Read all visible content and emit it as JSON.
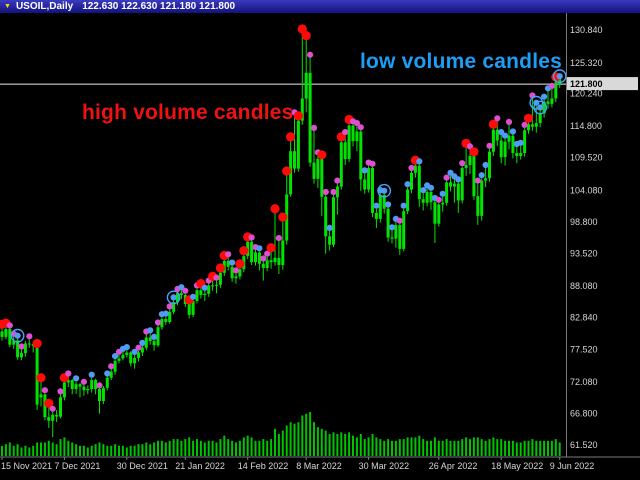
{
  "window": {
    "collapse_icon": "▼",
    "symbol": "USOIL,Daily",
    "ohlc_text": "122.630 122.630 121.180 121.800"
  },
  "annotations": {
    "high_volume": {
      "text": "high volume candles",
      "color": "#ee1212"
    },
    "low_volume": {
      "text": "low volume candles",
      "color": "#1e9df5"
    }
  },
  "colors": {
    "background": "#000000",
    "candle": "#00e400",
    "volume": "#00c400",
    "axis_text": "#d6d6d6",
    "axis_line": "#7a7a7a",
    "price_line": "#ececec",
    "price_tag_bg": "#d9d9d9",
    "price_tag_text": "#000000"
  },
  "chart_data": {
    "type": "candlestick",
    "symbol": "USOIL",
    "timeframe": "Daily",
    "legend": "red dot = high volume candle, magenta dot = medium volume, blue dot = low volume, ring = circled highlight",
    "current_price": "121.800",
    "price_axis_labels": [
      "130.840",
      "125.320",
      "120.240",
      "114.800",
      "109.520",
      "104.080",
      "98.800",
      "93.520",
      "88.080",
      "82.840",
      "77.520",
      "72.080",
      "66.800",
      "61.520"
    ],
    "date_axis_labels": [
      {
        "text": "15 Nov 2021",
        "index": 0
      },
      {
        "text": "7 Dec 2021",
        "index": 16
      },
      {
        "text": "30 Dec 2021",
        "index": 32
      },
      {
        "text": "21 Jan 2022",
        "index": 47
      },
      {
        "text": "14 Feb 2022",
        "index": 63
      },
      {
        "text": "8 Mar 2022",
        "index": 78
      },
      {
        "text": "30 Mar 2022",
        "index": 94
      },
      {
        "text": "26 Apr 2022",
        "index": 112
      },
      {
        "text": "18 May 2022",
        "index": 128
      },
      {
        "text": "9 Jun 2022",
        "index": 143
      }
    ],
    "marker_colors": {
      "r": "#ff0a0a",
      "m": "#de4fd0",
      "b": "#4f9bf5",
      "ring": "#45a6ff"
    },
    "candles_format": [
      "open",
      "high",
      "low",
      "close",
      "volume",
      "marker"
    ],
    "candles": [
      [
        80.5,
        81.2,
        79.0,
        79.6,
        6,
        "r"
      ],
      [
        79.6,
        81.4,
        79.2,
        80.9,
        7,
        "r"
      ],
      [
        80.9,
        81.0,
        77.9,
        78.3,
        8,
        "m"
      ],
      [
        78.3,
        79.6,
        77.6,
        79.0,
        6,
        "m"
      ],
      [
        79.0,
        79.3,
        75.8,
        76.2,
        7,
        "bc"
      ],
      [
        76.2,
        77.5,
        75.7,
        76.9,
        5,
        "m"
      ],
      [
        76.9,
        78.9,
        76.3,
        78.5,
        6,
        ""
      ],
      [
        78.5,
        79.2,
        77.8,
        78.4,
        5,
        "m"
      ],
      [
        78.4,
        78.7,
        77.0,
        78.1,
        6,
        ""
      ],
      [
        77.8,
        78.0,
        67.4,
        68.3,
        8,
        "r"
      ],
      [
        69.5,
        72.3,
        68.0,
        70.0,
        8,
        "r"
      ],
      [
        70.0,
        70.2,
        65.7,
        66.2,
        8,
        "m"
      ],
      [
        66.2,
        68.0,
        64.4,
        65.6,
        9,
        "r"
      ],
      [
        65.6,
        67.1,
        62.9,
        66.6,
        8,
        "m"
      ],
      [
        66.6,
        67.4,
        65.4,
        66.3,
        7,
        ""
      ],
      [
        66.3,
        70.0,
        66.0,
        69.5,
        10,
        "m"
      ],
      [
        69.5,
        72.3,
        69.0,
        72.0,
        11,
        "r"
      ],
      [
        72.0,
        73.0,
        71.2,
        72.4,
        9,
        "m"
      ],
      [
        72.4,
        72.6,
        70.0,
        70.9,
        8,
        ""
      ],
      [
        70.9,
        72.2,
        70.1,
        71.7,
        7,
        "b"
      ],
      [
        71.7,
        71.9,
        69.5,
        71.3,
        6,
        ""
      ],
      [
        71.3,
        71.6,
        69.8,
        70.7,
        6,
        "m"
      ],
      [
        70.7,
        71.5,
        70.0,
        70.9,
        5,
        ""
      ],
      [
        70.9,
        72.8,
        70.3,
        72.4,
        6,
        "b"
      ],
      [
        72.4,
        72.6,
        70.0,
        70.9,
        7,
        ""
      ],
      [
        70.9,
        71.0,
        66.8,
        68.9,
        8,
        "m"
      ],
      [
        68.9,
        71.4,
        68.4,
        71.1,
        7,
        ""
      ],
      [
        71.1,
        73.0,
        70.7,
        72.8,
        6,
        "b"
      ],
      [
        72.8,
        74.2,
        72.4,
        73.8,
        6,
        "m"
      ],
      [
        73.8,
        75.9,
        73.3,
        75.6,
        7,
        "b"
      ],
      [
        75.6,
        76.6,
        75.2,
        76.0,
        6,
        "m"
      ],
      [
        76.0,
        77.1,
        75.7,
        76.6,
        6,
        "b"
      ],
      [
        76.6,
        77.4,
        76.2,
        77.0,
        5,
        "b"
      ],
      [
        77.0,
        77.2,
        74.7,
        75.2,
        6,
        ""
      ],
      [
        75.2,
        76.6,
        74.3,
        76.1,
        6,
        "b"
      ],
      [
        76.1,
        77.3,
        75.5,
        77.0,
        7,
        "m"
      ],
      [
        77.0,
        78.1,
        76.4,
        77.8,
        7,
        "b"
      ],
      [
        77.8,
        80.0,
        77.4,
        79.5,
        8,
        "m"
      ],
      [
        79.5,
        80.2,
        78.3,
        78.9,
        7,
        "b"
      ],
      [
        78.9,
        79.1,
        77.3,
        78.2,
        8,
        "b"
      ],
      [
        78.2,
        81.5,
        77.9,
        81.2,
        9,
        "m"
      ],
      [
        81.2,
        82.9,
        80.8,
        82.6,
        9,
        "b"
      ],
      [
        82.6,
        83.0,
        81.6,
        82.1,
        8,
        "b"
      ],
      [
        82.1,
        84.2,
        81.8,
        83.8,
        9,
        "m"
      ],
      [
        83.8,
        85.7,
        83.4,
        85.4,
        10,
        "bc"
      ],
      [
        85.4,
        87.1,
        84.9,
        86.9,
        10,
        "m"
      ],
      [
        86.9,
        87.4,
        85.9,
        86.6,
        9,
        "b"
      ],
      [
        86.6,
        86.8,
        84.6,
        85.1,
        10,
        "m"
      ],
      [
        85.1,
        85.3,
        82.7,
        83.3,
        11,
        "r"
      ],
      [
        83.3,
        85.8,
        82.9,
        85.6,
        9,
        "b"
      ],
      [
        85.6,
        87.7,
        85.2,
        87.4,
        10,
        "m"
      ],
      [
        87.4,
        88.0,
        86.0,
        86.6,
        9,
        "r"
      ],
      [
        86.6,
        87.3,
        85.6,
        86.8,
        8,
        "b"
      ],
      [
        86.8,
        88.5,
        86.3,
        88.2,
        9,
        "m"
      ],
      [
        88.2,
        89.2,
        87.3,
        88.2,
        9,
        "r"
      ],
      [
        88.2,
        89.0,
        86.9,
        88.3,
        8,
        "m"
      ],
      [
        88.3,
        90.6,
        87.8,
        90.3,
        10,
        "r"
      ],
      [
        90.3,
        92.7,
        89.8,
        92.3,
        12,
        "r"
      ],
      [
        92.3,
        92.9,
        90.7,
        91.3,
        10,
        "m"
      ],
      [
        91.3,
        91.5,
        88.8,
        89.4,
        9,
        "b"
      ],
      [
        89.4,
        90.2,
        88.5,
        89.7,
        8,
        "m"
      ],
      [
        89.7,
        91.3,
        89.2,
        90.9,
        9,
        "r"
      ],
      [
        90.9,
        93.5,
        90.4,
        93.1,
        11,
        "r"
      ],
      [
        93.1,
        95.8,
        92.6,
        95.5,
        12,
        "r"
      ],
      [
        95.5,
        95.7,
        91.6,
        92.1,
        11,
        "m"
      ],
      [
        92.1,
        94.1,
        91.5,
        93.7,
        9,
        "m"
      ],
      [
        93.7,
        93.9,
        90.7,
        91.8,
        9,
        "b"
      ],
      [
        91.8,
        92.2,
        89.0,
        91.1,
        10,
        "m"
      ],
      [
        91.1,
        93.0,
        90.6,
        92.4,
        9,
        "m"
      ],
      [
        92.4,
        94.0,
        91.0,
        92.1,
        10,
        "r"
      ],
      [
        92.1,
        100.5,
        91.5,
        92.8,
        16,
        "r"
      ],
      [
        92.8,
        95.6,
        90.1,
        91.6,
        13,
        "m"
      ],
      [
        91.6,
        99.1,
        90.8,
        95.7,
        15,
        "r"
      ],
      [
        95.7,
        106.8,
        95.0,
        103.4,
        18,
        "r"
      ],
      [
        103.4,
        112.5,
        103.0,
        110.6,
        20,
        "r"
      ],
      [
        110.6,
        116.6,
        107.0,
        107.7,
        19,
        "m"
      ],
      [
        107.7,
        116.0,
        107.2,
        115.7,
        20,
        "r"
      ],
      [
        115.7,
        130.5,
        115.0,
        119.4,
        24,
        "r"
      ],
      [
        119.4,
        129.4,
        117.1,
        123.7,
        25,
        "r"
      ],
      [
        123.7,
        126.2,
        108.0,
        108.7,
        26,
        "m"
      ],
      [
        108.7,
        114.0,
        105.2,
        106.0,
        20,
        "m"
      ],
      [
        106.0,
        109.9,
        104.5,
        109.3,
        17,
        "m"
      ],
      [
        109.3,
        109.5,
        99.8,
        103.0,
        16,
        "r"
      ],
      [
        103.0,
        103.3,
        93.5,
        96.4,
        15,
        "m"
      ],
      [
        96.4,
        97.3,
        94.0,
        95.0,
        13,
        "b"
      ],
      [
        95.0,
        103.3,
        94.6,
        102.9,
        14,
        "m"
      ],
      [
        102.9,
        105.2,
        100.0,
        104.7,
        13,
        "m"
      ],
      [
        104.7,
        112.5,
        104.2,
        112.1,
        14,
        "r"
      ],
      [
        112.1,
        113.3,
        108.3,
        109.3,
        13,
        "m"
      ],
      [
        109.3,
        115.4,
        108.8,
        114.9,
        14,
        "r"
      ],
      [
        114.9,
        115.1,
        111.4,
        112.3,
        12,
        "m"
      ],
      [
        112.3,
        114.8,
        110.6,
        113.9,
        11,
        "m"
      ],
      [
        113.9,
        114.1,
        104.0,
        105.9,
        13,
        "m"
      ],
      [
        105.9,
        106.9,
        103.5,
        104.2,
        10,
        "b"
      ],
      [
        104.2,
        108.2,
        103.7,
        107.8,
        11,
        "m"
      ],
      [
        107.8,
        108.0,
        99.6,
        100.3,
        13,
        "m"
      ],
      [
        100.3,
        101.0,
        97.8,
        99.3,
        11,
        "b"
      ],
      [
        99.3,
        103.6,
        98.7,
        103.3,
        10,
        "b"
      ],
      [
        103.3,
        103.5,
        100.2,
        101.0,
        9,
        "bc"
      ],
      [
        101.0,
        101.2,
        95.5,
        96.2,
        10,
        "b"
      ],
      [
        96.2,
        97.4,
        95.2,
        96.0,
        9,
        "b"
      ],
      [
        96.0,
        98.8,
        94.5,
        98.3,
        9,
        "b"
      ],
      [
        98.3,
        98.5,
        93.3,
        94.3,
        10,
        "m"
      ],
      [
        94.3,
        101.0,
        93.9,
        100.6,
        10,
        "b"
      ],
      [
        100.6,
        104.6,
        100.1,
        104.2,
        11,
        "b"
      ],
      [
        104.2,
        107.3,
        103.6,
        107.0,
        11,
        "m"
      ],
      [
        107.0,
        108.6,
        106.2,
        108.2,
        11,
        "r"
      ],
      [
        108.2,
        108.4,
        101.3,
        102.6,
        12,
        "b"
      ],
      [
        102.6,
        103.6,
        100.7,
        102.0,
        10,
        "b"
      ],
      [
        102.0,
        104.4,
        101.4,
        103.8,
        9,
        "b"
      ],
      [
        103.8,
        104.0,
        100.8,
        102.1,
        9,
        "b"
      ],
      [
        102.1,
        102.3,
        95.3,
        98.5,
        11,
        "b"
      ],
      [
        98.5,
        102.0,
        98.0,
        101.7,
        9,
        "m"
      ],
      [
        101.7,
        103.0,
        100.5,
        102.0,
        9,
        "b"
      ],
      [
        102.0,
        105.7,
        101.5,
        105.4,
        10,
        "m"
      ],
      [
        105.4,
        106.5,
        103.9,
        104.7,
        9,
        "b"
      ],
      [
        104.7,
        105.9,
        102.0,
        105.2,
        9,
        "b"
      ],
      [
        105.2,
        105.4,
        100.3,
        102.4,
        9,
        "b"
      ],
      [
        102.4,
        108.1,
        101.9,
        107.8,
        10,
        "m"
      ],
      [
        107.8,
        111.4,
        106.5,
        108.3,
        11,
        "r"
      ],
      [
        108.3,
        110.9,
        106.8,
        109.8,
        10,
        "m"
      ],
      [
        109.8,
        110.0,
        102.5,
        103.1,
        11,
        "r"
      ],
      [
        103.1,
        105.2,
        98.3,
        99.8,
        11,
        "m"
      ],
      [
        99.8,
        106.1,
        99.0,
        105.7,
        10,
        "b"
      ],
      [
        105.7,
        107.8,
        104.6,
        106.1,
        9,
        "b"
      ],
      [
        106.1,
        111.0,
        105.5,
        110.5,
        10,
        "m"
      ],
      [
        110.5,
        114.6,
        109.8,
        114.2,
        11,
        "r"
      ],
      [
        114.2,
        115.6,
        111.5,
        112.4,
        10,
        "m"
      ],
      [
        112.4,
        113.3,
        108.6,
        109.6,
        10,
        "b"
      ],
      [
        109.6,
        112.7,
        108.2,
        112.2,
        9,
        "b"
      ],
      [
        112.2,
        115.0,
        110.9,
        113.2,
        9,
        "m"
      ],
      [
        113.2,
        113.4,
        109.4,
        110.3,
        9,
        "b"
      ],
      [
        110.3,
        111.3,
        108.6,
        109.8,
        8,
        "b"
      ],
      [
        109.8,
        111.5,
        109.2,
        110.3,
        8,
        "b"
      ],
      [
        110.3,
        114.5,
        109.7,
        114.1,
        9,
        "m"
      ],
      [
        114.1,
        115.6,
        113.5,
        115.1,
        9,
        "r"
      ],
      [
        115.1,
        119.4,
        114.0,
        114.7,
        10,
        "m"
      ],
      [
        114.7,
        118.2,
        113.7,
        115.3,
        9,
        "bc"
      ],
      [
        115.3,
        117.4,
        114.6,
        116.9,
        9,
        "bc"
      ],
      [
        116.9,
        119.2,
        116.2,
        118.9,
        9,
        "b"
      ],
      [
        118.9,
        120.6,
        117.7,
        118.5,
        9,
        "b"
      ],
      [
        118.5,
        121.0,
        117.9,
        119.4,
        9,
        "m"
      ],
      [
        119.4,
        122.5,
        118.8,
        122.1,
        10,
        "r"
      ],
      [
        122.63,
        122.63,
        121.18,
        121.8,
        8,
        "bc"
      ]
    ]
  }
}
